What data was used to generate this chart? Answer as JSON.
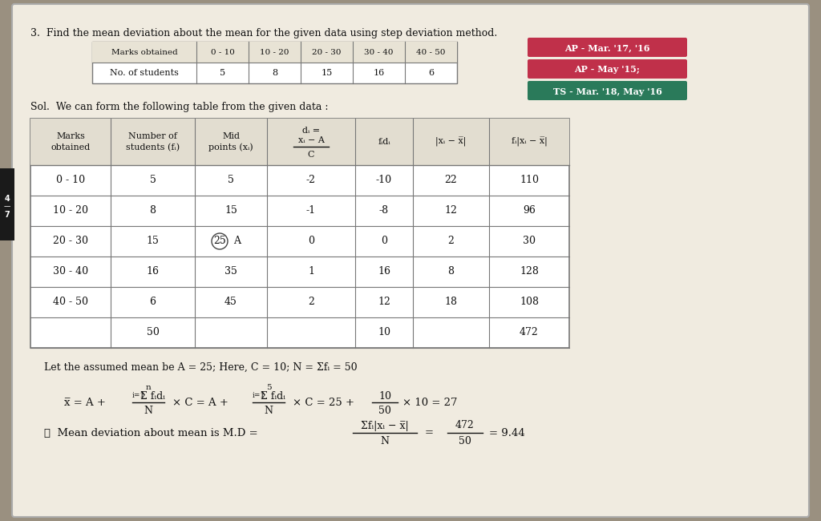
{
  "bg_outer": "#9a9080",
  "bg_page": "#f0ebe0",
  "title": "3.  Find the mean deviation about the mean for the given data using step deviation method.",
  "given_headers": [
    "Marks obtained",
    "0 - 10",
    "10 - 20",
    "20 - 30",
    "30 - 40",
    "40 - 50"
  ],
  "given_data": [
    "No. of students",
    "5",
    "8",
    "15",
    "16",
    "6"
  ],
  "tag1": "AP - Mar. '17, '16",
  "tag2": "AP - May '15;",
  "tag3": "TS - Mar. '18, May '16",
  "tag1_color": "#c0304a",
  "tag2_color": "#c0304a",
  "tag3_color": "#2a7a5a",
  "sol_text": "Sol.  We can form the following table from the given data :",
  "col_headers": [
    "Marks\nobtained",
    "Number of\nstudents (fᵢ)",
    "Mid\npoints (xᵢ)",
    "dᵢ =\nxᵢ - A\n———\n  C",
    "fᵢdᵢ",
    "|xᵢ - x̅|",
    "fᵢ|xᵢ - x̅|"
  ],
  "table_rows": [
    [
      "0 - 10",
      "5",
      "5",
      "-2",
      "-10",
      "22",
      "110"
    ],
    [
      "10 - 20",
      "8",
      "15",
      "-1",
      "-8",
      "12",
      "96"
    ],
    [
      "20 - 30",
      "15",
      "25",
      "0",
      "0",
      "2",
      "30"
    ],
    [
      "30 - 40",
      "16",
      "35",
      "1",
      "16",
      "8",
      "128"
    ],
    [
      "40 - 50",
      "6",
      "45",
      "2",
      "12",
      "18",
      "108"
    ],
    [
      "",
      "50",
      "",
      "",
      "10",
      "",
      "472"
    ]
  ],
  "assume_text": "Let the assumed mean be A = 25; Here, C = 10; N = Σfᵢ = 50",
  "therefore_sym": "∴"
}
